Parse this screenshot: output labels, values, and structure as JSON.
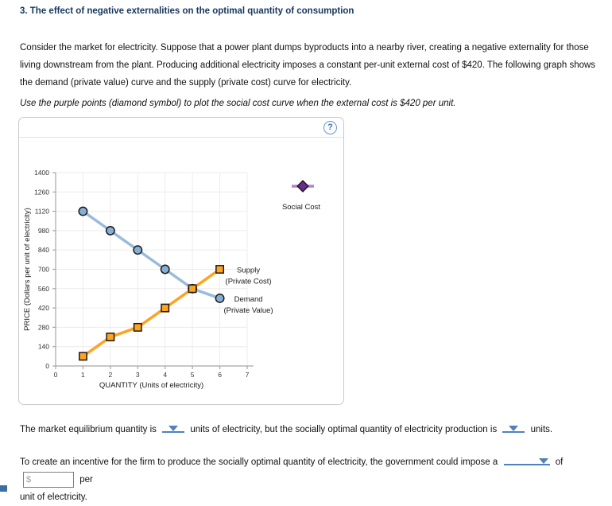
{
  "title": "3. The effect of negative externalities on the optimal quantity of consumption",
  "intro": "Consider the market for electricity. Suppose that a power plant dumps byproducts into a nearby river, creating a negative externality for those living downstream from the plant. Producing additional electricity imposes a constant per-unit external cost of $420. The following graph shows the demand (private value) curve and the supply (private cost) curve for electricity.",
  "instruction": "Use the purple points (diamond symbol) to plot the social cost curve when the external cost is $420 per unit.",
  "graph_panel": {
    "help_icon": "?"
  },
  "chart_data": {
    "type": "line",
    "xlabel": "QUANTITY (Units of electricity)",
    "ylabel": "PRICE (Dollars per unit of electricity)",
    "xlim": [
      0,
      7
    ],
    "ylim": [
      0,
      1400
    ],
    "xticks": [
      0,
      1,
      2,
      3,
      4,
      5,
      6,
      7
    ],
    "yticks": [
      0,
      140,
      280,
      420,
      560,
      700,
      840,
      980,
      1120,
      1260,
      1400
    ],
    "grid": true,
    "series": [
      {
        "name": "Demand (Private Value)",
        "label_lines": [
          "Demand",
          "(Private Value)"
        ],
        "marker": "circle",
        "line_color": "#9bbbdb",
        "marker_fill": "#86afd6",
        "x": [
          1,
          2,
          3,
          4,
          5,
          6
        ],
        "values": [
          1120,
          980,
          840,
          700,
          560,
          490
        ]
      },
      {
        "name": "Supply (Private Cost)",
        "label_lines": [
          "Supply",
          "(Private Cost)"
        ],
        "marker": "square",
        "line_color": "#ffa321",
        "marker_fill": "#ffa321",
        "x": [
          1,
          2,
          3,
          4,
          5,
          6
        ],
        "values": [
          70,
          210,
          280,
          420,
          560,
          700
        ]
      }
    ],
    "plottable_point": {
      "name": "Social Cost",
      "marker": "diamond",
      "marker_fill": "#6a2c91",
      "line_color": "#bb7fd0"
    }
  },
  "question1": {
    "part1": "The market equilibrium quantity is",
    "part2": "units of electricity, but the socially optimal quantity of electricity production is",
    "part3": "units."
  },
  "question2": {
    "part1": "To create an incentive for the firm to produce the socially optimal quantity of electricity, the government could impose a",
    "part2": "of",
    "currency_symbol": "$",
    "part3": "per",
    "part4": "unit of electricity."
  }
}
